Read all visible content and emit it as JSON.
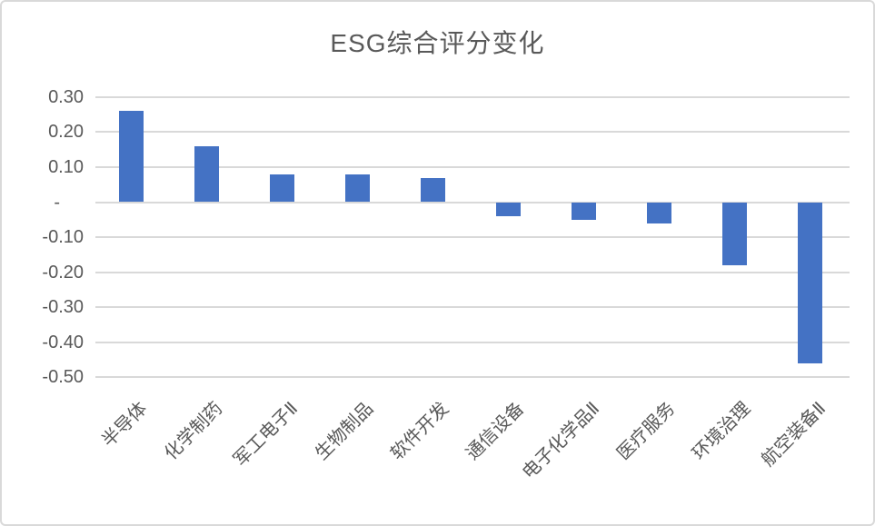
{
  "chart_data": {
    "type": "bar",
    "title": "ESG综合评分变化",
    "categories": [
      "半导体",
      "化学制药",
      "军工电子Ⅱ",
      "生物制品",
      "软件开发",
      "通信设备",
      "电子化学品Ⅱ",
      "医疗服务",
      "环境治理",
      "航空装备Ⅱ"
    ],
    "values": [
      0.26,
      0.16,
      0.08,
      0.08,
      0.07,
      -0.04,
      -0.05,
      -0.06,
      -0.18,
      -0.46
    ],
    "xlabel": "",
    "ylabel": "",
    "ylim": [
      -0.5,
      0.3
    ],
    "yticks": [
      {
        "value": 0.3,
        "label": "0.30"
      },
      {
        "value": 0.2,
        "label": "0.20"
      },
      {
        "value": 0.1,
        "label": "0.10"
      },
      {
        "value": 0.0,
        "label": "-"
      },
      {
        "value": -0.1,
        "label": "-0.10"
      },
      {
        "value": -0.2,
        "label": "-0.20"
      },
      {
        "value": -0.3,
        "label": "-0.30"
      },
      {
        "value": -0.4,
        "label": "-0.40"
      },
      {
        "value": -0.5,
        "label": "-0.50"
      }
    ],
    "grid": true,
    "legend": false,
    "x_label_rotation_deg": 45,
    "colors": {
      "bar": "#4472C4",
      "gridline": "#D9D9D9",
      "text": "#595959",
      "border": "#D9D9D9",
      "background": "#FFFFFF"
    }
  }
}
